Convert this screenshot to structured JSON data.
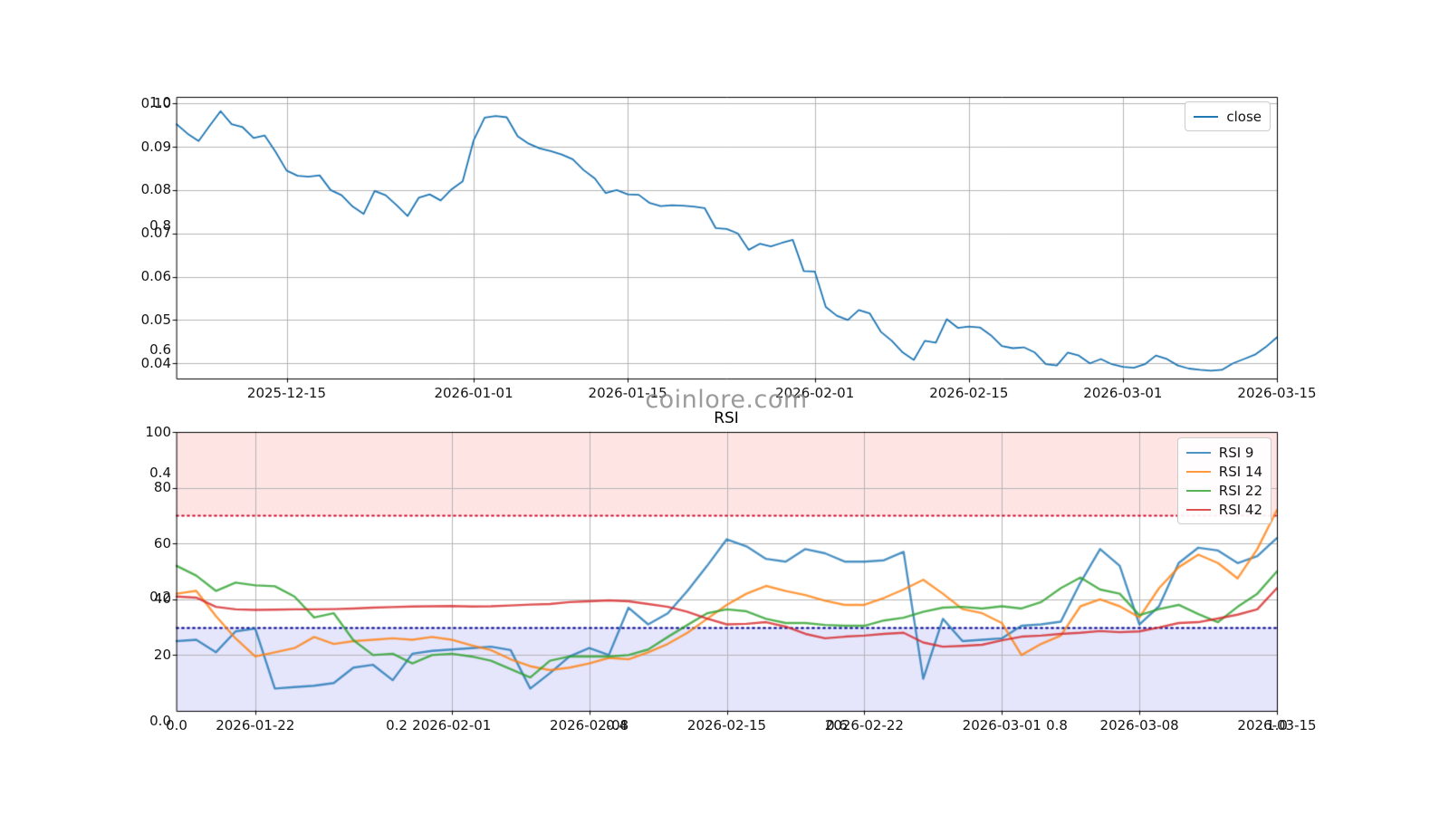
{
  "watermark": "coinlore.com",
  "overlay_axis": {
    "y_labels": [
      "1.0",
      "0.8",
      "0.6",
      "0.4",
      "0.2",
      "0.0"
    ],
    "x_labels": [
      "0.0",
      "0.2",
      "0.4",
      "0.6",
      "0.8",
      "1.0"
    ]
  },
  "chart_data": [
    {
      "type": "line",
      "name": "price-chart",
      "title": "",
      "x_start": "2025-12-05",
      "x_end": "2026-03-15",
      "x_tick_labels": [
        "2025-12-15",
        "2026-01-01",
        "2026-01-15",
        "2026-02-01",
        "2026-02-15",
        "2026-03-01",
        "2026-03-15"
      ],
      "y_tick_labels": [
        "0.10",
        "0.09",
        "0.08",
        "0.07",
        "0.06",
        "0.05",
        "0.04"
      ],
      "y_ticks": [
        0.1,
        0.09,
        0.08,
        0.07,
        0.06,
        0.05,
        0.04
      ],
      "ylim": [
        0.0365,
        0.1015
      ],
      "grid": true,
      "legend_position": "upper right",
      "series": [
        {
          "name": "close",
          "color": "#1f77b4",
          "alpha": 1.0,
          "width": 1.8,
          "values": [
            0.0952,
            0.093,
            0.0913,
            0.0948,
            0.0982,
            0.0952,
            0.0945,
            0.092,
            0.0926,
            0.0888,
            0.0845,
            0.0833,
            0.0831,
            0.0834,
            0.08,
            0.0788,
            0.0762,
            0.0745,
            0.0798,
            0.0788,
            0.0765,
            0.074,
            0.0782,
            0.079,
            0.0776,
            0.0802,
            0.082,
            0.0915,
            0.0967,
            0.0971,
            0.0968,
            0.0924,
            0.0907,
            0.0896,
            0.089,
            0.0882,
            0.0871,
            0.0846,
            0.0827,
            0.0793,
            0.08,
            0.079,
            0.0789,
            0.077,
            0.0763,
            0.0765,
            0.0764,
            0.0762,
            0.0758,
            0.0712,
            0.071,
            0.07,
            0.0662,
            0.0676,
            0.067,
            0.0678,
            0.0685,
            0.0613,
            0.0612,
            0.053,
            0.051,
            0.05,
            0.0523,
            0.0515,
            0.0473,
            0.0452,
            0.0425,
            0.0408,
            0.0452,
            0.0448,
            0.0502,
            0.0482,
            0.0485,
            0.0483,
            0.0465,
            0.044,
            0.0435,
            0.0437,
            0.0425,
            0.0398,
            0.0395,
            0.0425,
            0.0418,
            0.04,
            0.041,
            0.0398,
            0.0392,
            0.039,
            0.0398,
            0.0418,
            0.041,
            0.0395,
            0.0388,
            0.0385,
            0.0383,
            0.0385,
            0.04,
            0.041,
            0.042,
            0.0438,
            0.046
          ]
        }
      ]
    },
    {
      "type": "line",
      "name": "rsi-chart",
      "title": "RSI",
      "x_start": "2026-01-18",
      "x_end": "2026-03-15",
      "x_tick_labels": [
        "2026-01-22",
        "2026-02-01",
        "2026-02-08",
        "2026-02-15",
        "2026-02-22",
        "2026-03-01",
        "2026-03-08",
        "2026-03-15"
      ],
      "y_tick_labels": [
        "100",
        "80",
        "60",
        "40",
        "20"
      ],
      "y_ticks": [
        100,
        80,
        60,
        40,
        20
      ],
      "ylim": [
        0,
        100
      ],
      "grid": true,
      "legend_position": "upper right",
      "overbought_level": 70,
      "oversold_level": 30,
      "overbought_band_color": "rgba(255,90,90,0.16)",
      "oversold_band_color": "rgba(95,95,235,0.16)",
      "overbought_line_color": "#cc1133",
      "oversold_line_color": "#00008b",
      "series": [
        {
          "name": "RSI 9",
          "color": "#1f77b4",
          "alpha": 0.8,
          "width": 2.4,
          "values": [
            25,
            25.5,
            21,
            28.5,
            29.5,
            8,
            8.5,
            9,
            10,
            15.5,
            16.5,
            11,
            20.5,
            21.5,
            22,
            22.5,
            23,
            21.8,
            8,
            13.5,
            19.5,
            22.5,
            20,
            37,
            31,
            35,
            43,
            52,
            61.5,
            59,
            54.5,
            53.5,
            58,
            56.5,
            53.5,
            53.5,
            54,
            57,
            11.5,
            33,
            25,
            25.5,
            26,
            30.5,
            31,
            32,
            46,
            58,
            52,
            31,
            37.5,
            53,
            58.5,
            57.5,
            53,
            55.5,
            62
          ]
        },
        {
          "name": "RSI 14",
          "color": "#ff7f0e",
          "alpha": 0.8,
          "width": 2.4,
          "values": [
            42,
            43,
            34,
            26,
            19.5,
            21,
            22.5,
            26.5,
            24,
            25,
            25.5,
            26,
            25.5,
            26.5,
            25.5,
            23.5,
            21.8,
            18.5,
            16,
            14.6,
            15.5,
            17,
            19,
            18.5,
            21,
            24,
            28,
            33,
            38,
            42,
            44.8,
            43,
            41.5,
            39.5,
            38,
            38,
            40.5,
            43.5,
            47,
            42,
            36.5,
            35,
            31.5,
            20,
            24,
            27,
            37.5,
            40,
            37.5,
            33.5,
            44,
            51.5,
            56,
            53,
            47.5,
            58,
            72
          ]
        },
        {
          "name": "RSI 22",
          "color": "#2ca02c",
          "alpha": 0.8,
          "width": 2.4,
          "values": [
            52,
            48.5,
            43,
            46,
            45,
            44.7,
            41,
            33.5,
            35,
            25.3,
            20,
            20.5,
            17,
            20,
            20.5,
            19.5,
            18,
            15,
            12,
            18,
            19.5,
            19.5,
            19.5,
            20,
            22,
            26.5,
            30.8,
            35,
            36.4,
            35.7,
            33,
            31.5,
            31.5,
            30.8,
            30.5,
            30.5,
            32.4,
            33.4,
            35.5,
            37,
            37.3,
            36.7,
            37.5,
            36.7,
            39,
            44,
            47.8,
            43.5,
            42,
            34.3,
            36.5,
            38,
            34.7,
            31.8,
            37.3,
            42,
            50
          ]
        },
        {
          "name": "RSI 42",
          "color": "#d62728",
          "alpha": 0.8,
          "width": 2.4,
          "values": [
            41,
            40.6,
            37.3,
            36.4,
            36.2,
            36.3,
            36.4,
            36.4,
            36.5,
            36.7,
            37,
            37.2,
            37.4,
            37.5,
            37.6,
            37.4,
            37.5,
            37.8,
            38.1,
            38.3,
            39,
            39.3,
            39.6,
            39.3,
            38.3,
            37.3,
            35.5,
            33.1,
            31,
            31.2,
            31.8,
            30.2,
            27.6,
            26,
            26.6,
            27,
            27.6,
            28,
            24.5,
            23,
            23.3,
            23.7,
            25.3,
            26.6,
            27,
            27.6,
            28,
            28.6,
            28.2,
            28.5,
            29.9,
            31.5,
            31.8,
            33.1,
            34.5,
            36.4,
            44
          ]
        }
      ]
    }
  ]
}
